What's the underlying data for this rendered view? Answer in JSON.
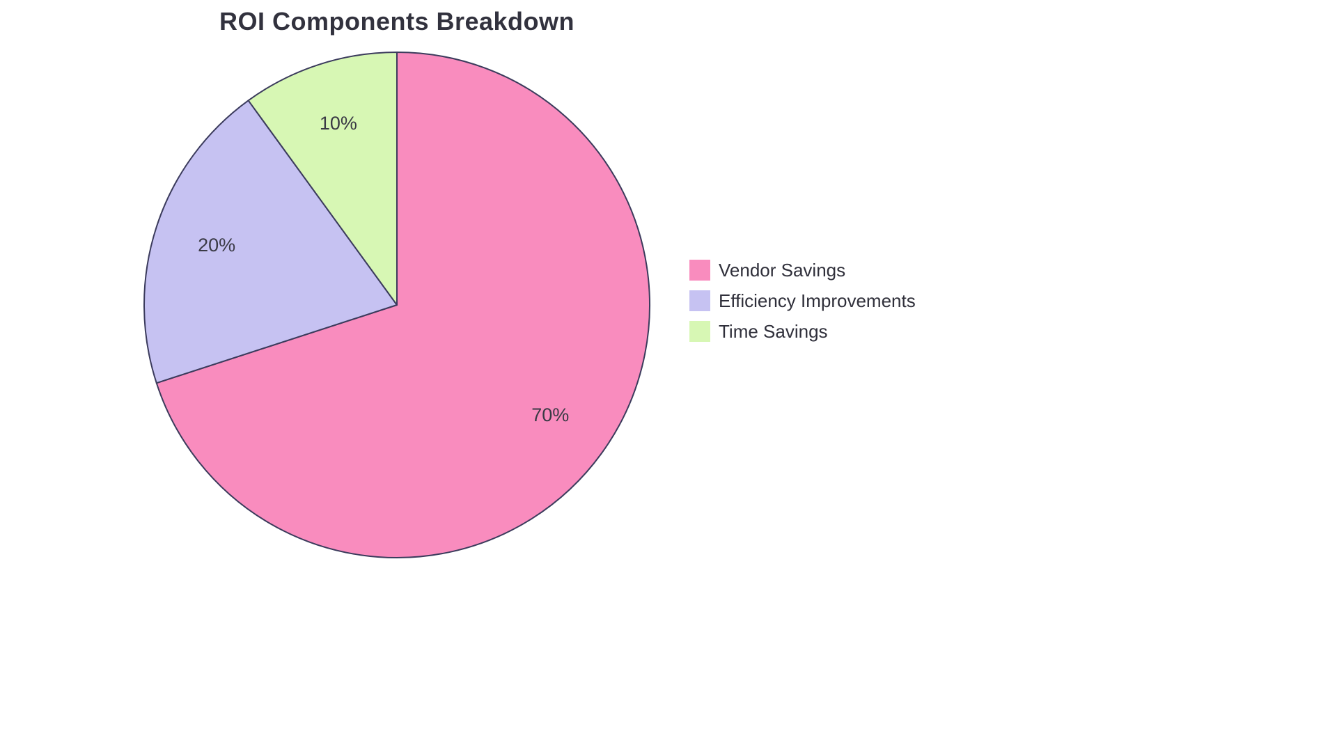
{
  "title": "ROI Components Breakdown",
  "chart_data": {
    "type": "pie",
    "title": "ROI Components Breakdown",
    "labels": [
      "Vendor Savings",
      "Efficiency Improvements",
      "Time Savings"
    ],
    "values": [
      70,
      20,
      10
    ],
    "percent_labels": [
      "70%",
      "20%",
      "10%"
    ],
    "colors": [
      "#F98CBE",
      "#C6C2F2",
      "#D7F7B4"
    ],
    "stroke_color": "#3B3B5C",
    "start_angle_deg": -90,
    "direction": "clockwise",
    "legend_position": "right",
    "legend_entries": [
      {
        "label": "Vendor Savings",
        "color": "#F98CBE"
      },
      {
        "label": "Efficiency Improvements",
        "color": "#C6C2F2"
      },
      {
        "label": "Time Savings",
        "color": "#D7F7B4"
      }
    ]
  }
}
